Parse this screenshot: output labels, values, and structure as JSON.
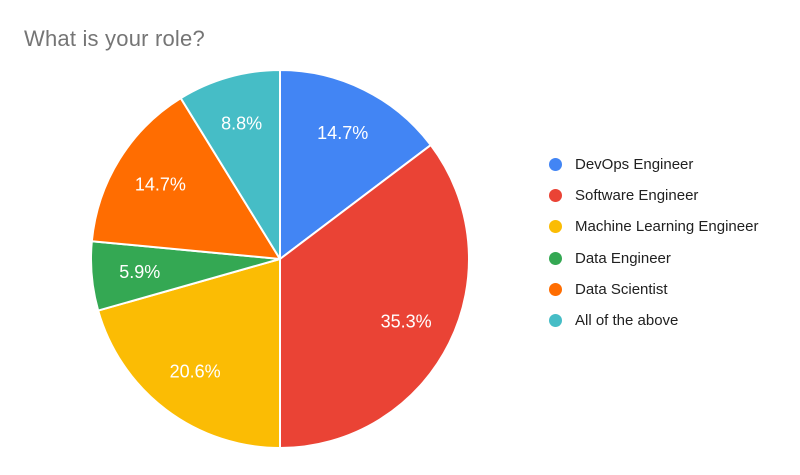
{
  "chart_data": {
    "type": "pie",
    "title": "What is your role?",
    "legend_position": "right",
    "start_angle_deg": 0,
    "direction": "clockwise",
    "separator_color": "#ffffff",
    "label_color": "#ffffff",
    "title_color": "#757575",
    "legend_text_color": "#212121",
    "slices": [
      {
        "label": "DevOps Engineer",
        "value": 14.7,
        "percent_label": "14.7%",
        "color": "#4285F4"
      },
      {
        "label": "Software Engineer",
        "value": 35.3,
        "percent_label": "35.3%",
        "color": "#EA4335"
      },
      {
        "label": "Machine Learning Engineer",
        "value": 20.6,
        "percent_label": "20.6%",
        "color": "#FBBC04"
      },
      {
        "label": "Data Engineer",
        "value": 5.9,
        "percent_label": "5.9%",
        "color": "#34A853"
      },
      {
        "label": "Data Scientist",
        "value": 14.7,
        "percent_label": "14.7%",
        "color": "#FF6D01"
      },
      {
        "label": "All of the above",
        "value": 8.8,
        "percent_label": "8.8%",
        "color": "#46BDC6"
      }
    ]
  }
}
